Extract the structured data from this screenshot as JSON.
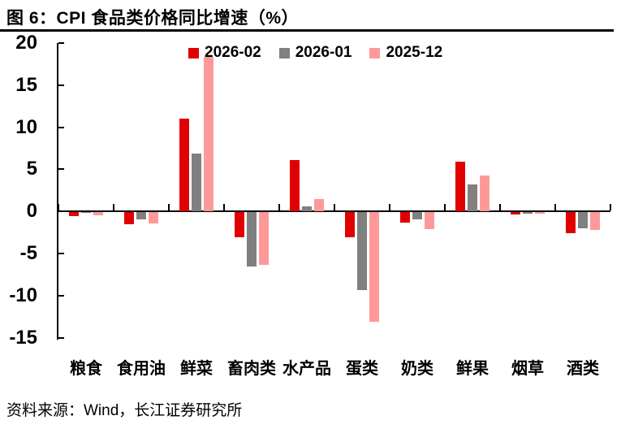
{
  "header": {
    "title": "图 6：CPI 食品类价格同比增速（%）"
  },
  "source_note": "资料来源：Wind，长江证券研究所",
  "colors": {
    "series_red": "#e00000",
    "series_gray": "#808080",
    "series_pink": "#ff9999",
    "axis": "#000000",
    "background": "#ffffff"
  },
  "chart_data": {
    "type": "bar",
    "title": "CPI 食品类价格同比增速（%）",
    "xlabel": "",
    "ylabel": "",
    "ylim": [
      -15,
      20
    ],
    "yticks": [
      20,
      15,
      10,
      5,
      0,
      -5,
      -10,
      -15
    ],
    "grid": false,
    "legend_position": "top-center",
    "categories": [
      "粮食",
      "食用油",
      "鲜菜",
      "畜肉类",
      "水产品",
      "蛋类",
      "奶类",
      "鲜果",
      "烟草",
      "酒类"
    ],
    "series": [
      {
        "name": "2026-02",
        "color": "#e00000",
        "values": [
          -0.5,
          -1.4,
          11.0,
          -3.0,
          6.1,
          -3.0,
          -1.2,
          5.9,
          -0.3,
          -2.5
        ]
      },
      {
        "name": "2026-01",
        "color": "#808080",
        "values": [
          -0.1,
          -0.9,
          6.9,
          -6.5,
          0.6,
          -9.3,
          -0.9,
          3.2,
          -0.2,
          -1.9
        ]
      },
      {
        "name": "2025-12",
        "color": "#ff9999",
        "values": [
          -0.4,
          -1.3,
          18.4,
          -6.3,
          1.5,
          -13.0,
          -2.0,
          4.3,
          -0.2,
          -2.1
        ]
      }
    ]
  }
}
